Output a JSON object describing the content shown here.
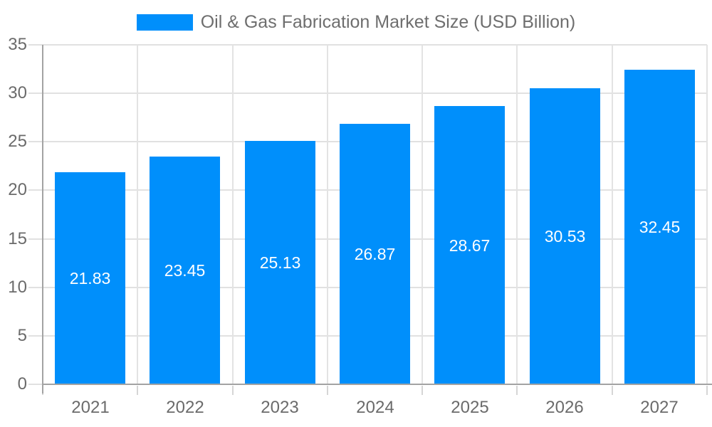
{
  "legend": {
    "label": "Oil & Gas Fabrication Market Size (USD Billion)"
  },
  "chart_data": {
    "type": "bar",
    "title": "Oil & Gas Fabrication Market Size (USD Billion)",
    "categories": [
      "2021",
      "2022",
      "2023",
      "2024",
      "2025",
      "2026",
      "2027"
    ],
    "values": [
      21.83,
      23.45,
      25.13,
      26.87,
      28.67,
      30.53,
      32.45
    ],
    "data_labels": [
      "21.83",
      "23.45",
      "25.13",
      "26.87",
      "28.67",
      "30.53",
      "32.45"
    ],
    "series": [
      {
        "name": "Oil & Gas Fabrication Market Size (USD Billion)",
        "values": [
          21.83,
          23.45,
          25.13,
          26.87,
          28.67,
          30.53,
          32.45
        ]
      }
    ],
    "xlabel": "",
    "ylabel": "",
    "ylim": [
      0,
      35
    ],
    "yticks": [
      0,
      5,
      10,
      15,
      20,
      25,
      30,
      35
    ],
    "grid": true,
    "legend_position": "top",
    "colors": {
      "bar": "#008FFB",
      "data_label": "#ffffff",
      "axis_line": "#a3a3a3",
      "grid_line": "#e1e1e1",
      "tick_label": "#6b6b6b",
      "legend_text": "#6e6e6e",
      "background": "#ffffff"
    }
  }
}
